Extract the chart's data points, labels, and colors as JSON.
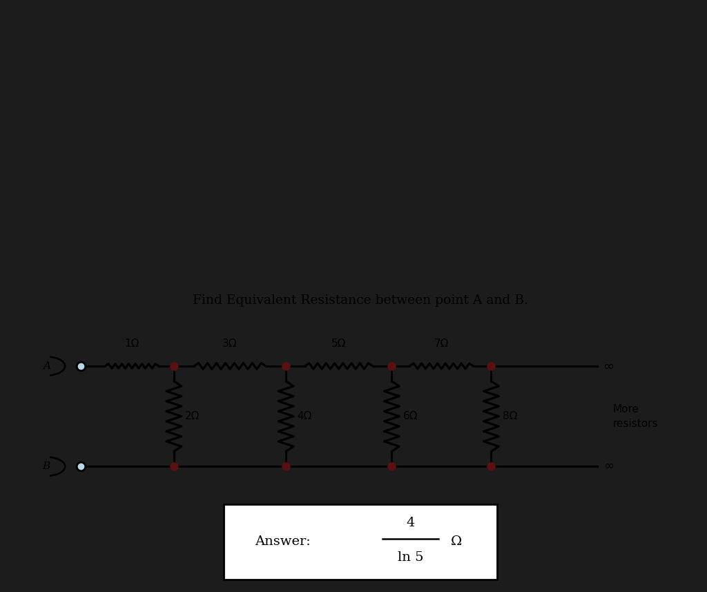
{
  "title": "Find Equivalent Resistance between point A and B.",
  "background_color": "#b8d8e8",
  "outer_background": "#1c1c1c",
  "answer_numerator": "4",
  "answer_denominator": "ln 5",
  "answer_unit": "Ω",
  "point_A_label": "A",
  "point_B_label": "B",
  "more_resistors_text": "More\nresistors",
  "infinity_symbol": "∞",
  "series_labels": [
    "1Ω",
    "3Ω",
    "5Ω",
    "7Ω"
  ],
  "shunt_labels": [
    "2Ω",
    "4Ω",
    "6Ω",
    "8Ω"
  ],
  "junction_color": "#5a1010",
  "line_color": "#000000"
}
